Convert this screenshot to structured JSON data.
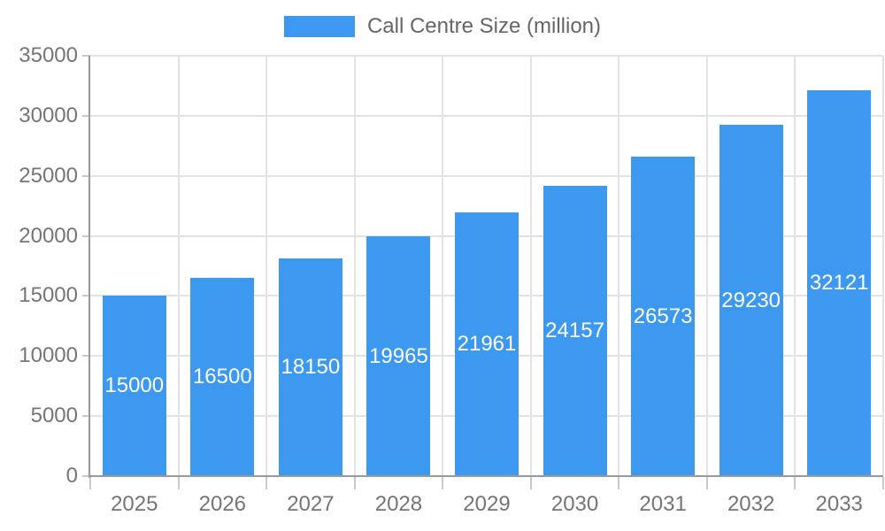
{
  "chart_data": {
    "type": "bar",
    "categories": [
      "2025",
      "2026",
      "2027",
      "2028",
      "2029",
      "2030",
      "2031",
      "2032",
      "2033"
    ],
    "series": [
      {
        "name": "Call Centre Size (million)",
        "values": [
          15000,
          16500,
          18150,
          19965,
          21961,
          24157,
          26573,
          29230,
          32121
        ]
      }
    ],
    "ylim": [
      0,
      35000
    ],
    "ytick_step": 5000,
    "ytick_labels": [
      "0",
      "5000",
      "10000",
      "15000",
      "20000",
      "25000",
      "30000",
      "35000"
    ],
    "grid": true,
    "legend_position": "top",
    "value_label_position": "inside-center"
  },
  "colors": {
    "bar": "#3C99EF",
    "grid": "#E3E3E3",
    "axis": "#999999",
    "tick": "#C9C9C9",
    "axis_text": "#757575",
    "legend_text": "#666666",
    "value_label_text": "#FFFFFF",
    "background": "#FFFFFF"
  }
}
